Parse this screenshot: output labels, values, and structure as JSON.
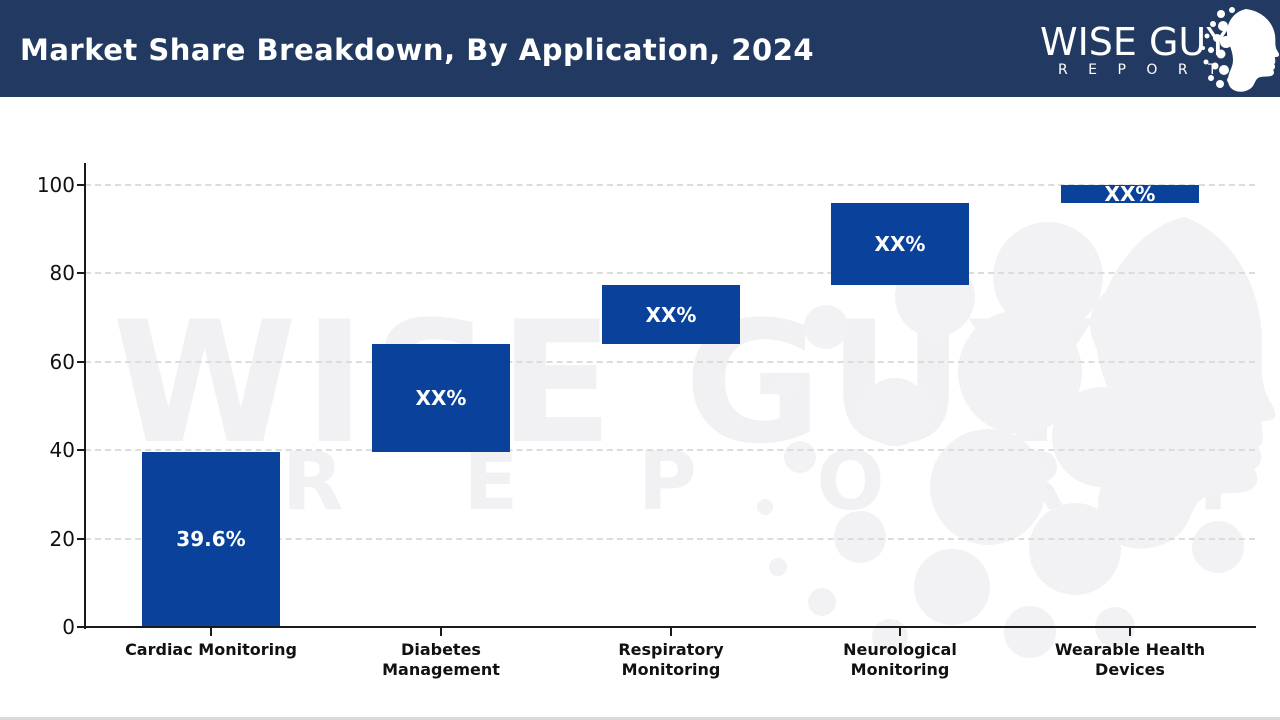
{
  "header": {
    "title": "Market Share Breakdown, By Application, 2024",
    "bg_color": "#223A61",
    "logo": {
      "line1": "WISE GUY",
      "line2": "REPORTS"
    }
  },
  "watermark": {
    "line1": "WISE GUY",
    "line2": "REPORTS"
  },
  "chart_data": {
    "type": "bar",
    "subtype": "waterfall",
    "title": "",
    "xlabel": "",
    "ylabel": "",
    "ylim": [
      0,
      100
    ],
    "y_ticks": [
      0,
      20,
      40,
      60,
      80,
      100
    ],
    "grid": true,
    "grid_style": "dashed",
    "bar_color": "#0A429B",
    "bar_label_color": "#ffffff",
    "categories": [
      "Cardiac Monitoring",
      "Diabetes Management",
      "Respiratory Monitoring",
      "Neurological Monitoring",
      "Wearable Health Devices"
    ],
    "category_lines": [
      [
        "Cardiac Monitoring"
      ],
      [
        "Diabetes",
        "Management"
      ],
      [
        "Respiratory",
        "Monitoring"
      ],
      [
        "Neurological",
        "Monitoring"
      ],
      [
        "Wearable Health",
        "Devices"
      ]
    ],
    "segments": [
      {
        "category": "Cardiac Monitoring",
        "start": 0,
        "end": 39.6,
        "value_label": "39.6%"
      },
      {
        "category": "Diabetes Management",
        "start": 39.6,
        "end": 64.0,
        "value_label": "XX%"
      },
      {
        "category": "Respiratory Monitoring",
        "start": 64.0,
        "end": 77.4,
        "value_label": "XX%"
      },
      {
        "category": "Neurological Monitoring",
        "start": 77.4,
        "end": 96.0,
        "value_label": "XX%"
      },
      {
        "category": "Wearable Health Devices",
        "start": 96.0,
        "end": 100.0,
        "value_label": "XX%"
      }
    ]
  }
}
